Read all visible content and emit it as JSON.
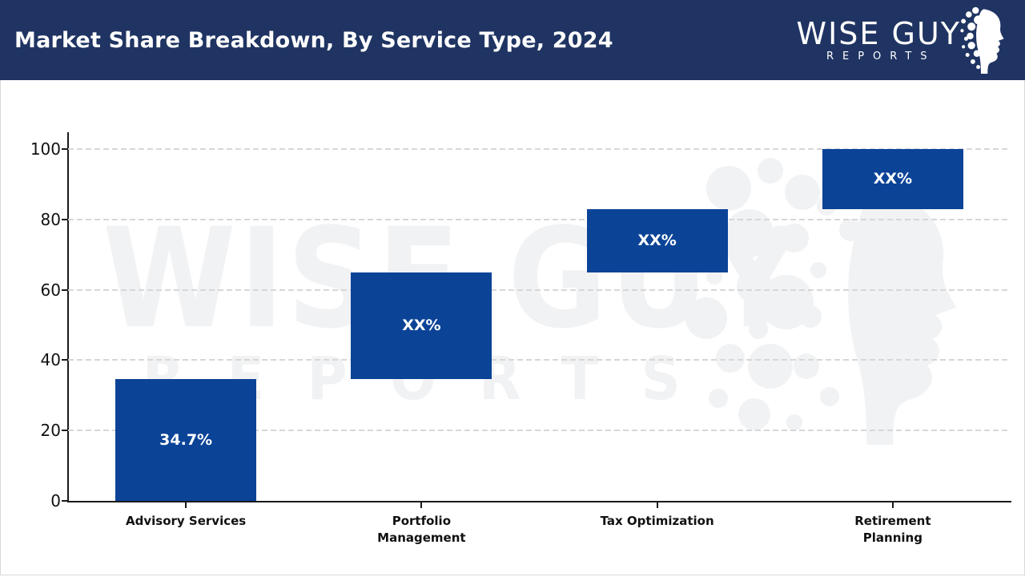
{
  "header": {
    "title": "Market Share Breakdown, By Service Type, 2024",
    "bg_color": "#1f3462",
    "logo": {
      "line1": "WISE GUY",
      "line2": "REPORTS"
    }
  },
  "watermark": {
    "line1": "WISE GUY",
    "line2": "REPORTS"
  },
  "chart_data": {
    "type": "bar",
    "subtype": "floating-breakdown-bars",
    "title": "Market Share Breakdown, By Service Type, 2024",
    "categories": [
      "Advisory Services",
      "Portfolio Management",
      "Tax Optimization",
      "Retirement Planning"
    ],
    "segments": [
      {
        "category_lines": [
          "Advisory Services"
        ],
        "start": 0,
        "end": 34.7,
        "bar_label": "34.7%"
      },
      {
        "category_lines": [
          "Portfolio",
          "Management"
        ],
        "start": 34.7,
        "end": 65,
        "bar_label": "XX%"
      },
      {
        "category_lines": [
          "Tax Optimization"
        ],
        "start": 65,
        "end": 83,
        "bar_label": "XX%"
      },
      {
        "category_lines": [
          "Retirement",
          "Planning"
        ],
        "start": 83,
        "end": 100,
        "bar_label": "XX%"
      }
    ],
    "xlabel": "",
    "ylabel": "",
    "ylim": [
      0,
      100
    ],
    "yticks": [
      0,
      20,
      40,
      60,
      80,
      100
    ],
    "grid": "horizontal-dashed",
    "legend": "none",
    "bar_color": "#0b4397",
    "bar_label_color": "#ffffff"
  }
}
